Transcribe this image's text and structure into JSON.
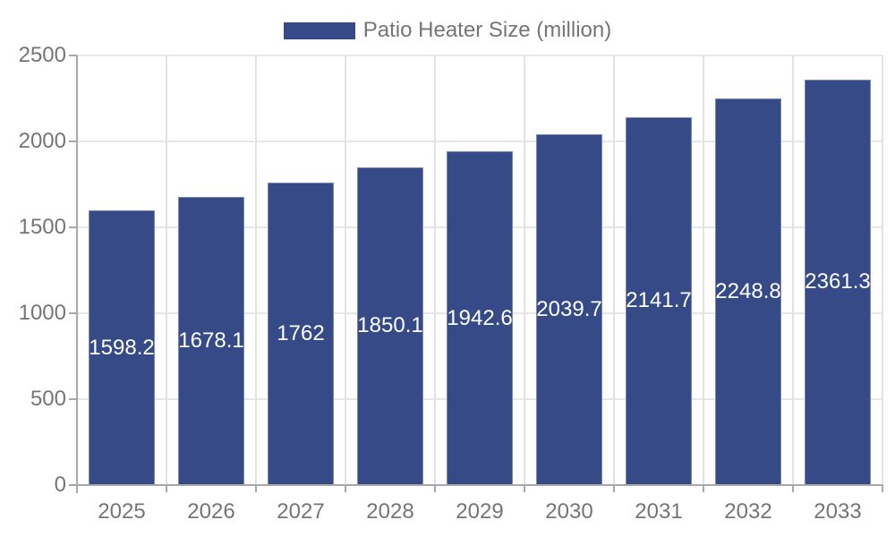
{
  "chart_data": {
    "type": "bar",
    "title": "",
    "legend": "Patio Heater Size (million)",
    "categories": [
      "2025",
      "2026",
      "2027",
      "2028",
      "2029",
      "2030",
      "2031",
      "2032",
      "2033"
    ],
    "values": [
      1598.2,
      1678.1,
      1762,
      1850.1,
      1942.6,
      2039.7,
      2141.7,
      2248.8,
      2361.3
    ],
    "xlabel": "",
    "ylabel": "",
    "ylim": [
      0,
      2500
    ],
    "yticks": [
      0,
      500,
      1000,
      1500,
      2000,
      2500
    ],
    "grid": true,
    "legend_position": "top-center",
    "value_label_position": "inside-center",
    "colors": {
      "bar": "#364a88",
      "bar_label": "#ffffff",
      "axis_text": "#757575",
      "axis_line": "#a7a7ad",
      "gridline_h": "#e7e7e7",
      "gridline_v": "#e2e2e2"
    }
  }
}
